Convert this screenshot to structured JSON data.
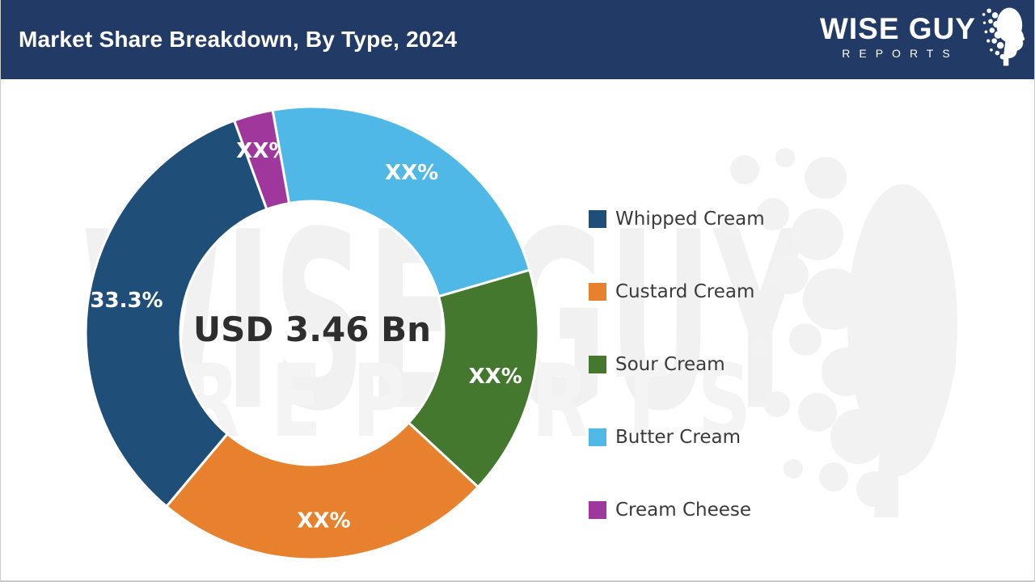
{
  "header": {
    "title": "Market Share Breakdown, By Type, 2024",
    "bg_color": "#223a66",
    "logo": {
      "line1": "WISE GUY",
      "line2": "REPORTS"
    }
  },
  "watermark": {
    "line1": "WISE GUY",
    "line2": "REPORTS"
  },
  "chart_data": {
    "type": "pie",
    "subtype": "donut",
    "title": "Market Share Breakdown, By Type, 2024",
    "center_label": "USD 3.46 Bn",
    "legend_position": "right",
    "start_angle": 220,
    "draw_order": [
      0,
      4,
      3,
      2,
      1
    ],
    "segments": [
      {
        "name": "Whipped Cream",
        "label": "33.3%",
        "value": 33.3,
        "color": "#1F4E79"
      },
      {
        "name": "Custard Cream",
        "label": "XX%",
        "value": 24.2,
        "color": "#E8812D"
      },
      {
        "name": "Sour Cream",
        "label": "XX%",
        "value": 16.4,
        "color": "#44782F"
      },
      {
        "name": "Butter Cream",
        "label": "XX%",
        "value": 23.3,
        "color": "#4FB8E6"
      },
      {
        "name": "Cream Cheese",
        "label": "XX%",
        "value": 2.8,
        "color": "#A0379D"
      }
    ]
  }
}
